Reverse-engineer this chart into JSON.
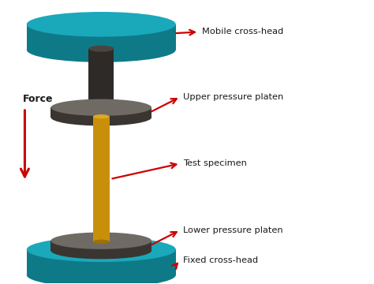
{
  "bg_color": "#ffffff",
  "teal_color": "#1aa8bb",
  "teal_dark": "#0d8898",
  "teal_side": "#0e7a88",
  "dark_gray": "#3a3530",
  "medium_gray": "#5a5550",
  "gray_top": "#706a65",
  "gold_color": "#c8900a",
  "gold_dark": "#a07008",
  "arrow_color": "#cc0000",
  "text_color": "#1a1a1a",
  "labels": {
    "mobile_crosshead": "Mobile cross-head",
    "upper_platen": "Upper pressure platen",
    "test_specimen": "Test specimen",
    "lower_platen": "Lower pressure platen",
    "fixed_crosshead": "Fixed cross-head",
    "force": "Force"
  }
}
